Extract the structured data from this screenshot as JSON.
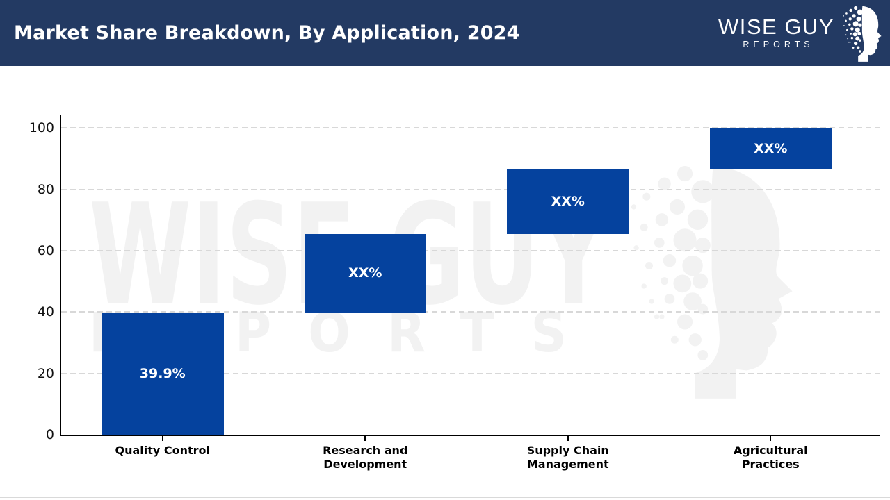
{
  "header": {
    "title": "Market Share Breakdown, By Application, 2024",
    "brand_name": "WISE GUY",
    "brand_sub": "REPORTS",
    "bg_color": "#233a63"
  },
  "watermark": {
    "line1": "WISE GUY",
    "line2": "REPORTS"
  },
  "chart_data": {
    "type": "bar",
    "subtype": "waterfall",
    "title": "Market Share Breakdown, By Application, 2024",
    "categories": [
      "Quality Control",
      "Research and Development",
      "Supply Chain Management",
      "Agricultural Practices"
    ],
    "category_lines": [
      [
        "Quality Control"
      ],
      [
        "Research and",
        "Development"
      ],
      [
        "Supply Chain",
        "Management"
      ],
      [
        "Agricultural",
        "Practices"
      ]
    ],
    "series": [
      {
        "name": "Market Share (%)",
        "starts": [
          0,
          39.9,
          65.5,
          86.5
        ],
        "values": [
          39.9,
          25.6,
          21.0,
          13.5
        ]
      }
    ],
    "bar_labels": [
      "39.9%",
      "XX%",
      "XX%",
      "XX%"
    ],
    "yticks": [
      0,
      20,
      40,
      60,
      80,
      100
    ],
    "ylim": [
      0,
      100
    ],
    "xlabel": "",
    "ylabel": "",
    "grid": "horizontal-dashed",
    "legend": "none",
    "bar_color": "#05429e",
    "bar_label_color": "#ffffff",
    "grid_color": "#d8d8d8",
    "axis_color": "#000000",
    "header_color": "#233a63",
    "watermark_color": "#f2f2f2"
  }
}
